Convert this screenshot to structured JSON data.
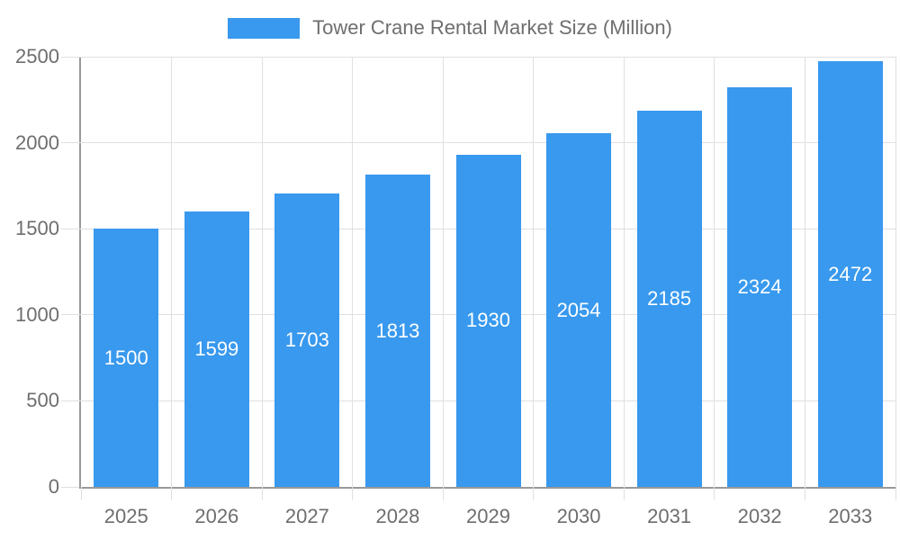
{
  "colors": {
    "bar": "#3899ee",
    "grid": "#e0e0e0",
    "axis": "#999999",
    "text": "#6e6e6e",
    "value_label": "#ffffff",
    "background": "#ffffff"
  },
  "legend": {
    "label": "Tower Crane Rental Market Size (Million)"
  },
  "chart_data": {
    "type": "bar",
    "title": "",
    "xlabel": "",
    "ylabel": "",
    "categories": [
      "2025",
      "2026",
      "2027",
      "2028",
      "2029",
      "2030",
      "2031",
      "2032",
      "2033"
    ],
    "series": [
      {
        "name": "Tower Crane Rental Market Size (Million)",
        "values": [
          1500,
          1599,
          1703,
          1813,
          1930,
          2054,
          2185,
          2324,
          2472
        ]
      }
    ],
    "value_labels_shown": true,
    "ylim": [
      0,
      2500
    ],
    "yticks": [
      0,
      500,
      1000,
      1500,
      2000,
      2500
    ],
    "grid": true,
    "legend_position": "top",
    "bar_color": "#3899ee",
    "value_label_color": "#ffffff"
  }
}
